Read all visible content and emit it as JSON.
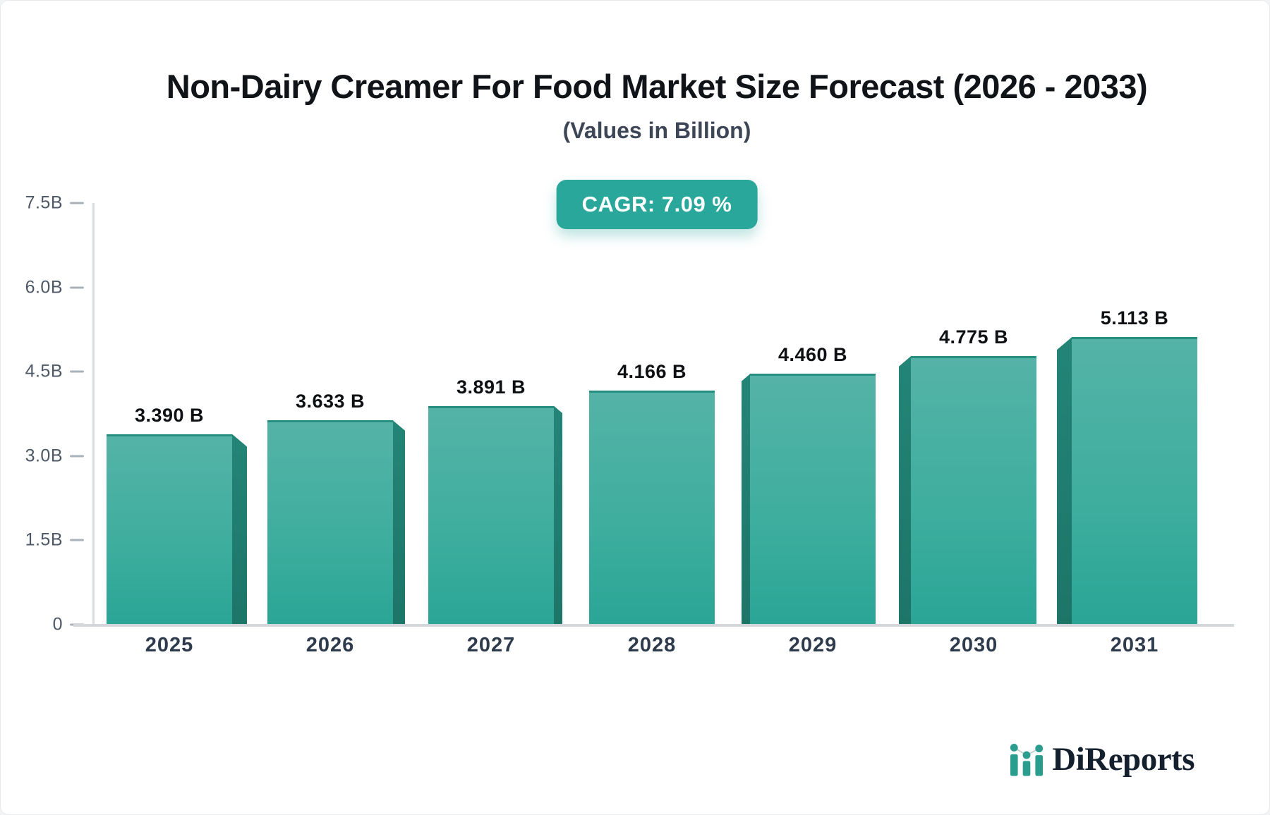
{
  "brand": {
    "name": "DiReports"
  },
  "chart_data": {
    "type": "bar",
    "title": "Non-Dairy Creamer For Food Market Size Forecast (2026 - 2033)",
    "subtitle": "(Values in Billion)",
    "cagr_label": "CAGR: 7.09 %",
    "categories": [
      "2025",
      "2026",
      "2027",
      "2028",
      "2029",
      "2030",
      "2031"
    ],
    "values": [
      3.39,
      3.633,
      3.891,
      4.166,
      4.46,
      4.775,
      5.113
    ],
    "value_labels": [
      "3.390 B",
      "3.633 B",
      "3.891 B",
      "4.166 B",
      "4.460 B",
      "4.775 B",
      "5.113 B"
    ],
    "unit": "Billion",
    "ylim": [
      0,
      7.5
    ],
    "y_ticks": [
      {
        "value": 7.5,
        "label": "7.5B"
      },
      {
        "value": 6.0,
        "label": "6.0B"
      },
      {
        "value": 4.5,
        "label": "4.5B"
      },
      {
        "value": 3.0,
        "label": "3.0B"
      },
      {
        "value": 1.5,
        "label": "1.5B"
      },
      {
        "value": 0,
        "label": "0"
      }
    ],
    "grid": false,
    "legend": false,
    "colors": {
      "bar_top": "#54b3a6",
      "bar_bottom": "#2aa596",
      "bar_side": "#1f7c6f",
      "badge": "#2aa79b",
      "axis": "#d3d7db",
      "tick": "#a9b1ba",
      "title_text": "#101418",
      "subtitle_text": "#3c4656",
      "logo_accent": "#2a9d8f",
      "logo_text": "#15202f"
    }
  }
}
